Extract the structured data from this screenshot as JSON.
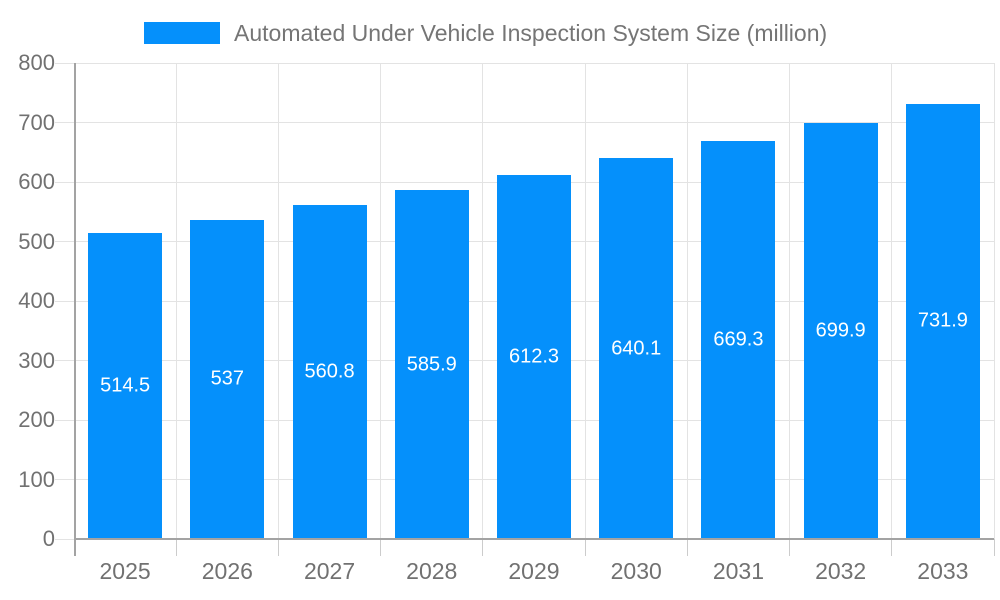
{
  "legend": {
    "label": "Automated Under Vehicle Inspection System Size (million)"
  },
  "colors": {
    "bar": "#0590fb",
    "grid": "#e3e3e3",
    "axis": "#a3a3a3",
    "x_tick": "#cccccc",
    "tick_label_text": "#717171",
    "legend_text": "#757575",
    "value_label_text": "#ffffff",
    "background": "#ffffff"
  },
  "chart_data": {
    "type": "bar",
    "title": "Automated Under Vehicle Inspection System Size (million)",
    "categories": [
      "2025",
      "2026",
      "2027",
      "2028",
      "2029",
      "2030",
      "2031",
      "2032",
      "2033"
    ],
    "values": [
      514.5,
      537,
      560.8,
      585.9,
      612.3,
      640.1,
      669.3,
      699.9,
      731.9
    ],
    "value_labels": [
      "514.5",
      "537",
      "560.8",
      "585.9",
      "612.3",
      "640.1",
      "669.3",
      "699.9",
      "731.9"
    ],
    "xlabel": "",
    "ylabel": "",
    "ylim": [
      0,
      800
    ],
    "yticks": [
      0,
      100,
      200,
      300,
      400,
      500,
      600,
      700,
      800
    ],
    "grid": "both",
    "legend_position": "top",
    "value_label_position": "bar-center"
  }
}
